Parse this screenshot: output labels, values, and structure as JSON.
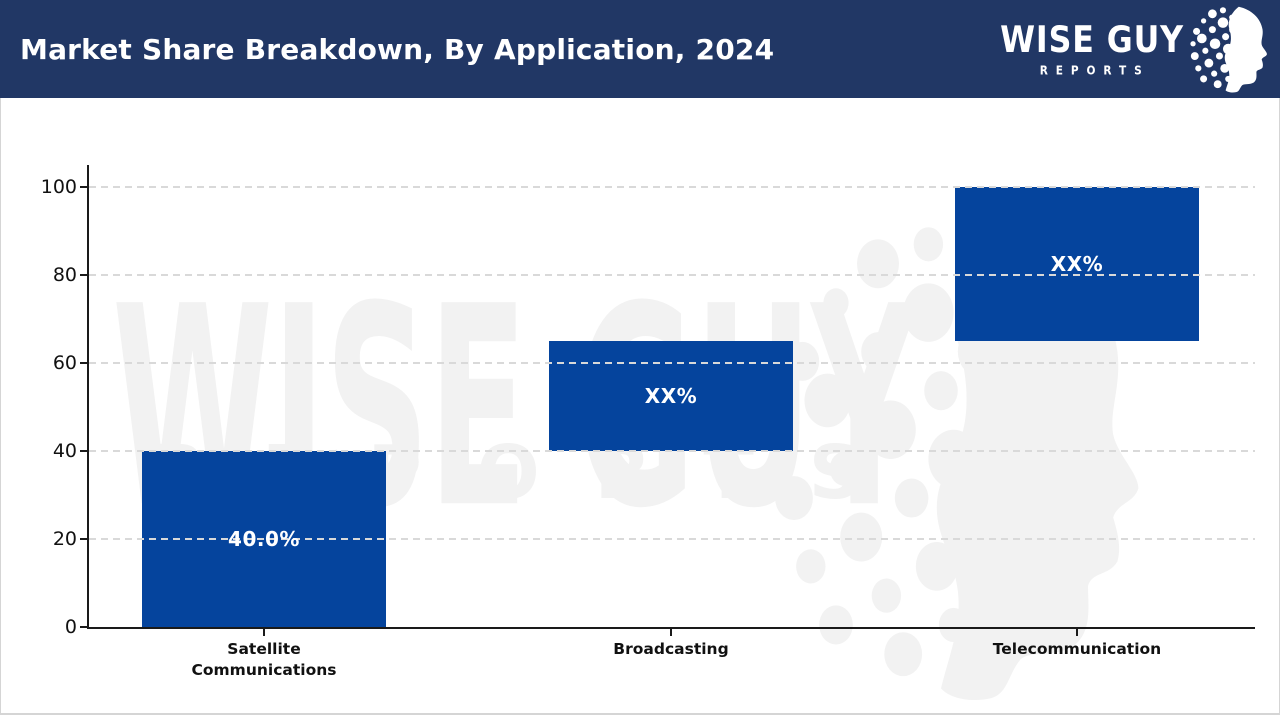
{
  "header": {
    "title": "Market Share Breakdown, By Application, 2024"
  },
  "logo": {
    "line1": "WISE GUY",
    "line2": "REPORTS",
    "head_icon": "dotted-head-profile-icon"
  },
  "watermark": {
    "line1": "WISE GUY",
    "line2": "REPORTS"
  },
  "colors": {
    "header_bg": "#213765",
    "header_text": "#ffffff",
    "bar": "#05449d",
    "bar_label_text": "#ffffff",
    "gridline": "#d9d9d9",
    "axis": "#1a1a1a",
    "watermark": "#f2f2f2",
    "page_border": "#d5d5d5"
  },
  "chart_data": {
    "type": "bar",
    "subtype": "waterfall",
    "title": "Market Share Breakdown, By Application, 2024",
    "categories": [
      "Satellite Communications",
      "Broadcasting",
      "Telecommunication"
    ],
    "series": [
      {
        "name": "Market share (%)",
        "segments": [
          {
            "category": "Satellite Communications",
            "start": 0,
            "end": 40,
            "label": "40.0%"
          },
          {
            "category": "Broadcasting",
            "start": 40,
            "end": 65,
            "label": "XX%"
          },
          {
            "category": "Telecommunication",
            "start": 65,
            "end": 100,
            "label": "XX%"
          }
        ]
      }
    ],
    "yticks": [
      0,
      20,
      40,
      60,
      80,
      100
    ],
    "ylim": [
      0,
      105
    ],
    "xlabel": "",
    "ylabel": "",
    "grid": "horizontal-dashed-over-bars",
    "legend": "none"
  }
}
